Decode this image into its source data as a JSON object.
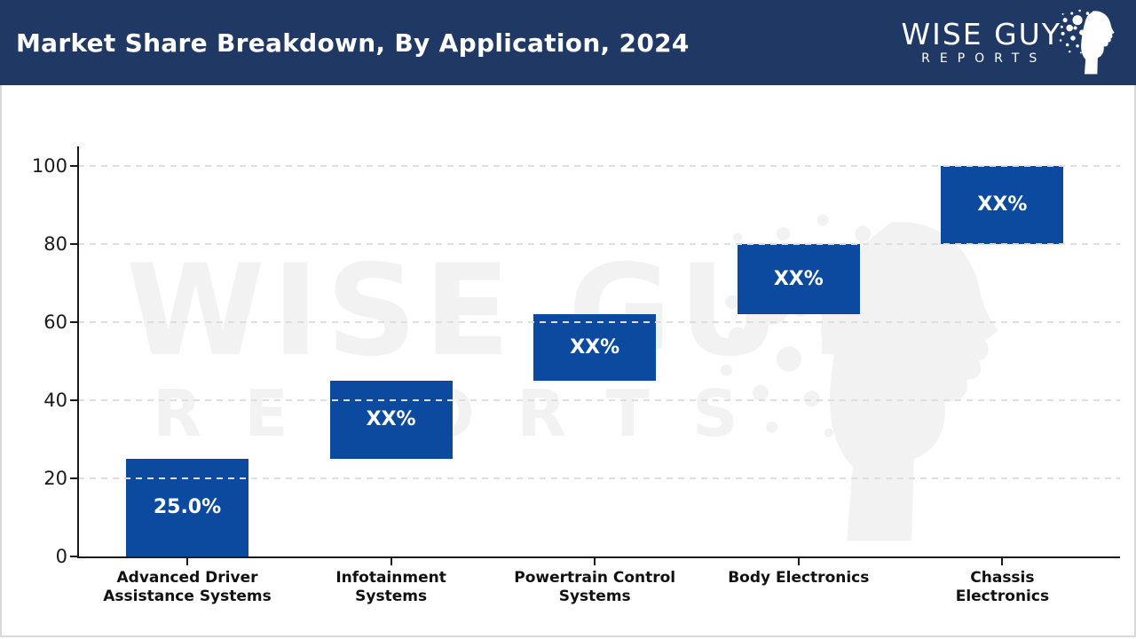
{
  "header": {
    "title": "Market Share Breakdown, By Application, 2024",
    "brand": {
      "name": "WISE GUY",
      "sub": "REPORTS"
    }
  },
  "watermark": {
    "line1": "WISE GUY",
    "line2": "REPORTS"
  },
  "chart_data": {
    "type": "bar",
    "subtype": "waterfall",
    "title": "Market Share Breakdown, By Application, 2024",
    "categories": [
      "Advanced Driver Assistance Systems",
      "Infotainment Systems",
      "Powertrain Control Systems",
      "Body Electronics",
      "Chassis Electronics"
    ],
    "category_label_lines": [
      [
        "Advanced Driver",
        "Assistance Systems"
      ],
      [
        "Infotainment",
        "Systems"
      ],
      [
        "Powertrain Control",
        "Systems"
      ],
      [
        "Body Electronics"
      ],
      [
        "Chassis",
        "Electronics"
      ]
    ],
    "values": [
      25,
      20,
      17,
      18,
      20
    ],
    "cumulative_start": [
      0,
      25,
      45,
      62,
      80
    ],
    "cumulative_end": [
      25,
      45,
      62,
      80,
      100
    ],
    "bar_labels": [
      "25.0%",
      "XX%",
      "XX%",
      "XX%",
      "XX%"
    ],
    "xlabel": "",
    "ylabel": "",
    "yticks": [
      0,
      20,
      40,
      60,
      80,
      100
    ],
    "ylim": [
      0,
      105
    ],
    "grid": "horizontal-dashed",
    "legend": false,
    "bar_color": "#0b4a9e",
    "bar_label_color": "#ffffff",
    "axis_color": "#1a1a1a",
    "grid_color": "#dedede",
    "watermark_color": "#f2f2f2",
    "header_bg": "#1f3864"
  }
}
